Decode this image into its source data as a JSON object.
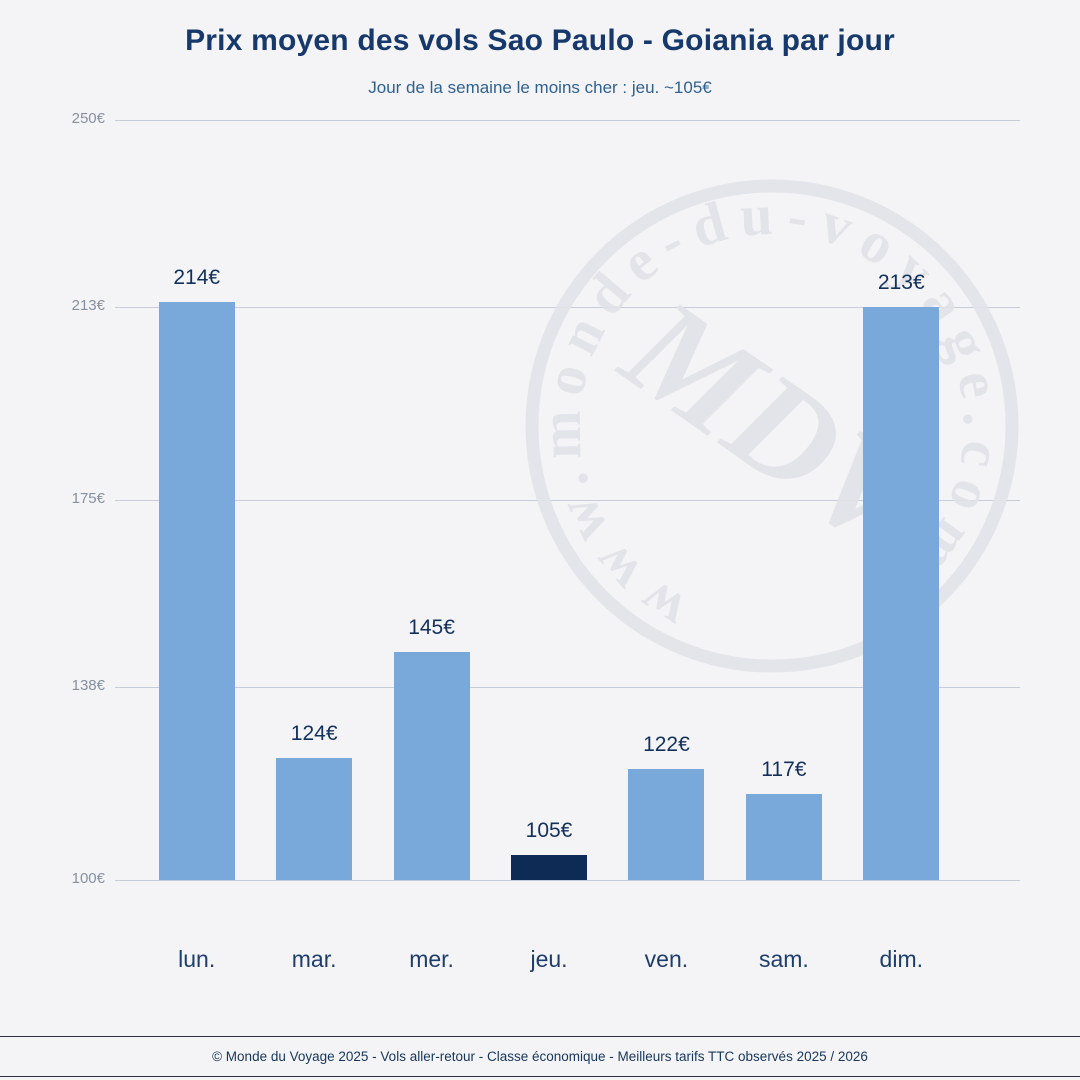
{
  "header": {
    "title": "Prix moyen des vols Sao Paulo - Goiania par jour",
    "subtitle": "Jour de la semaine le moins cher : jeu. ~105€"
  },
  "chart_data": {
    "type": "bar",
    "title": "Prix moyen des vols Sao Paulo - Goiania par jour",
    "subtitle": "Jour de la semaine le moins cher : jeu. ~105€",
    "categories": [
      "lun.",
      "mar.",
      "mer.",
      "jeu.",
      "ven.",
      "sam.",
      "dim."
    ],
    "values": [
      214,
      124,
      145,
      105,
      122,
      117,
      213
    ],
    "value_labels": [
      "214€",
      "124€",
      "145€",
      "105€",
      "122€",
      "117€",
      "213€"
    ],
    "highlight_index": 3,
    "xlabel": "",
    "ylabel": "",
    "ylim": [
      100,
      250
    ],
    "yticks": [
      250,
      213,
      175,
      138,
      100
    ],
    "ytick_labels": [
      "250€",
      "213€",
      "175€",
      "138€",
      "100€"
    ],
    "grid": true,
    "legend": false,
    "colors": {
      "bar": "#79a8da",
      "bar_highlight": "#0d2b55",
      "grid": "#c6cdda",
      "title": "#16386b",
      "subtitle": "#2f618f"
    }
  },
  "watermark": {
    "ring_text": "www.monde-du-voyage.com",
    "center_text": "MDV"
  },
  "footer": {
    "text": "© Monde du Voyage 2025 - Vols aller-retour - Classe économique - Meilleurs tarifs TTC observés 2025 / 2026"
  }
}
